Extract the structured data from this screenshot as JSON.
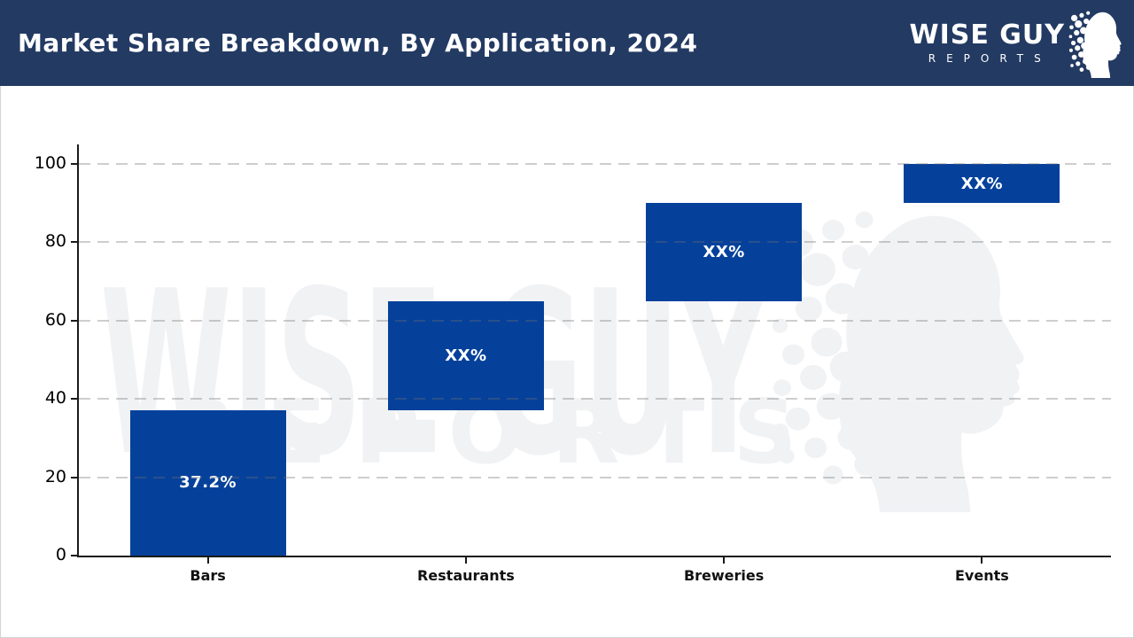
{
  "header": {
    "title": "Market Share Breakdown, By Application, 2024",
    "logo": {
      "line1": "WISE GUY",
      "line2": "REPORTS"
    }
  },
  "watermark": {
    "line1": "WISE GUY",
    "line2": "REPORTS"
  },
  "chart_data": {
    "type": "bar",
    "subtype": "waterfall",
    "title": "Market Share Breakdown, By Application, 2024",
    "categories": [
      "Bars",
      "Restaurants",
      "Breweries",
      "Events"
    ],
    "segments": [
      {
        "category": "Bars",
        "start": 0,
        "end": 37.2,
        "value": 37.2,
        "label": "37.2%"
      },
      {
        "category": "Restaurants",
        "start": 37.2,
        "end": 65,
        "value": 27.8,
        "label": "XX%"
      },
      {
        "category": "Breweries",
        "start": 65,
        "end": 90,
        "value": 25,
        "label": "XX%"
      },
      {
        "category": "Events",
        "start": 90,
        "end": 100,
        "value": 10,
        "label": "XX%"
      }
    ],
    "xlabel": "",
    "ylabel": "",
    "ylim": [
      0,
      100
    ],
    "yticks": [
      0,
      20,
      40,
      60,
      80,
      100
    ],
    "grid": "horizontal-dashed",
    "legend": "none",
    "bar_color": "#05419b",
    "bar_label_color": "#ffffff"
  },
  "colors": {
    "header_bg": "#233a63",
    "header_text": "#ffffff",
    "bar": "#05419b",
    "watermark": "#f1f2f4",
    "axis": "#1a1a1a",
    "gridline": "#d9d9d9"
  }
}
